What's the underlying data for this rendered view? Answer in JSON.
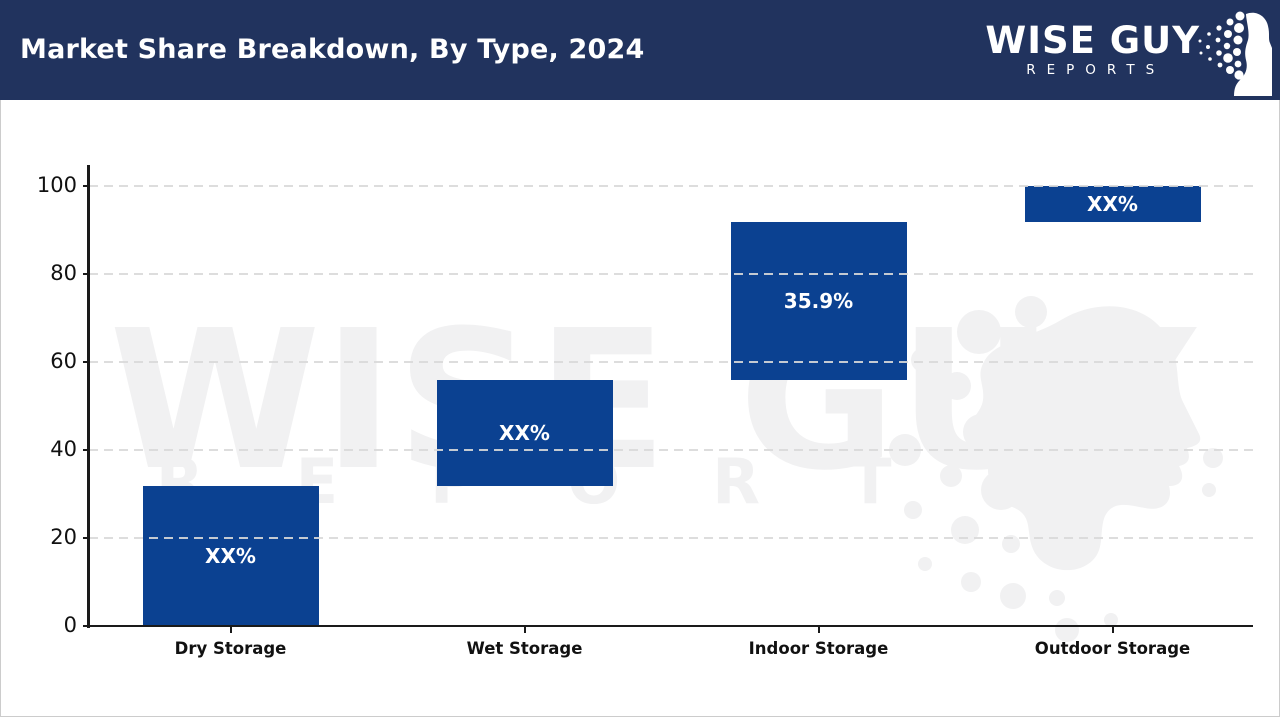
{
  "header": {
    "title": "Market Share Breakdown, By Type, 2024",
    "bg_color": "#21335e",
    "logo": {
      "line1": "WISE GUY",
      "line2": "REPORTS",
      "icon": "face-dots-icon"
    }
  },
  "watermark": {
    "line1": "WISE GUY",
    "line2": "REPORTS",
    "icon": "face-dots-watermark-icon",
    "color": "#f1f1f2"
  },
  "chart_data": {
    "type": "bar",
    "subtype": "waterfall",
    "title": "Market Share Breakdown, By Type, 2024",
    "categories": [
      "Dry Storage",
      "Wet Storage",
      "Indoor Storage",
      "Outdoor Storage"
    ],
    "series": [
      {
        "name": "Market share (%)",
        "segments": [
          {
            "category": "Dry Storage",
            "start": 0,
            "end": 31.8,
            "label": "XX%"
          },
          {
            "category": "Wet Storage",
            "start": 31.8,
            "end": 55.9,
            "label": "XX%"
          },
          {
            "category": "Indoor Storage",
            "start": 55.9,
            "end": 91.8,
            "label": "35.9%"
          },
          {
            "category": "Outdoor Storage",
            "start": 91.8,
            "end": 100,
            "label": "XX%"
          }
        ]
      }
    ],
    "xlabel": "",
    "ylabel": "",
    "ylim": [
      0,
      105
    ],
    "yticks": [
      0,
      20,
      40,
      60,
      80,
      100
    ],
    "grid": "horizontal dashed, drawn over bars",
    "legend": "none",
    "bar_color": "#0b4191",
    "bar_label_color": "#ffffff",
    "grid_color": "#d9d9d9",
    "axis_color": "#1a1a1a",
    "tick_label_color": "#111111"
  }
}
